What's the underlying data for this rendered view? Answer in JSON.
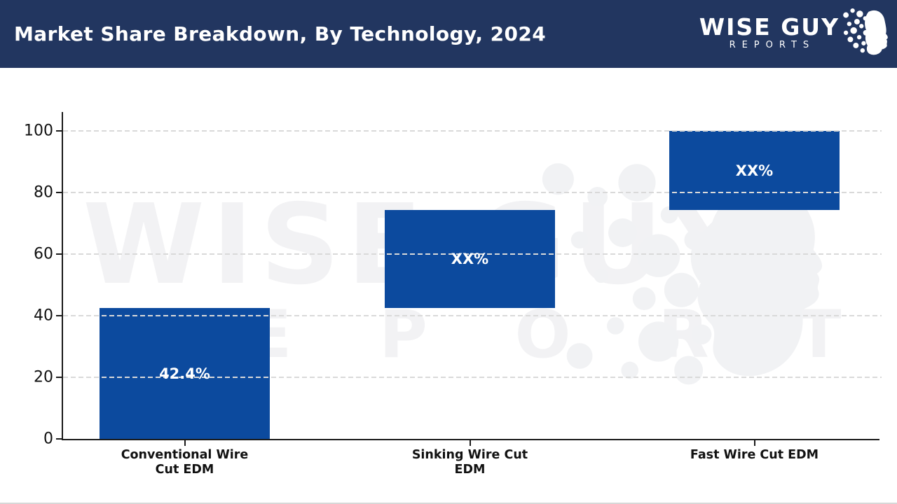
{
  "header": {
    "title": "Market Share Breakdown, By Technology, 2024",
    "logo": {
      "primary": "WISE GUY",
      "secondary": "REPORTS"
    }
  },
  "watermark": {
    "primary": "WISE GUY",
    "secondary": "R E P O R T S"
  },
  "chart_data": {
    "type": "bar",
    "subtype": "waterfall",
    "title": "Market Share Breakdown, By Technology, 2024",
    "categories": [
      "Conventional Wire\nCut EDM",
      "Sinking Wire Cut\nEDM",
      "Fast Wire Cut EDM"
    ],
    "segments": [
      {
        "category": "Conventional Wire Cut EDM",
        "start": 0,
        "end": 42.4,
        "label": "42.4%"
      },
      {
        "category": "Sinking Wire Cut EDM",
        "start": 42.4,
        "end": 74.3,
        "label": "XX%"
      },
      {
        "category": "Fast Wire Cut EDM",
        "start": 74.3,
        "end": 100,
        "label": "XX%"
      }
    ],
    "yticks": [
      0,
      20,
      40,
      60,
      80,
      100
    ],
    "ylim": [
      0,
      105
    ],
    "xlabel": "",
    "ylabel": "",
    "grid": "horizontal-dashed",
    "legend": "none",
    "bar_color": "#0c4a9e",
    "value_label_color": "#ffffff",
    "header_color": "#223660"
  }
}
